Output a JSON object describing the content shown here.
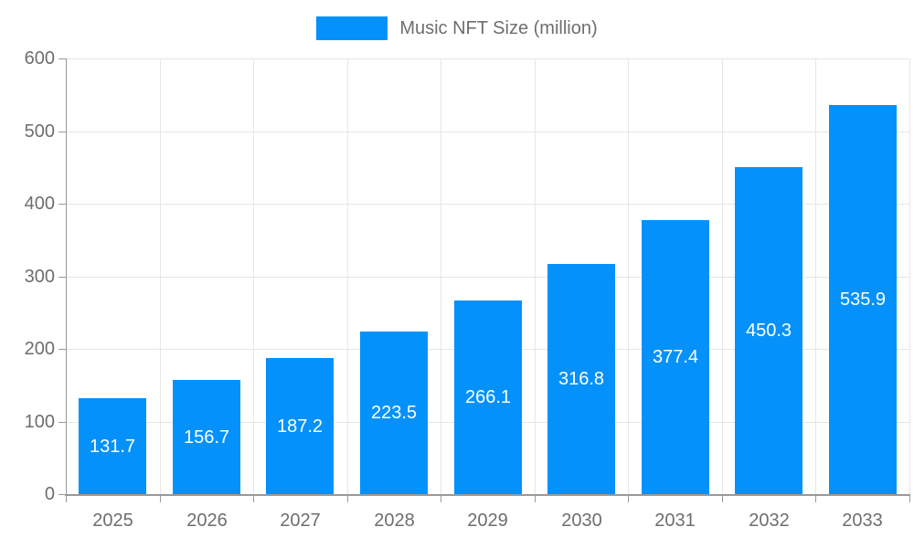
{
  "chart_data": {
    "type": "bar",
    "title": "Music NFT Size (million)",
    "legend": [
      "Music NFT Size (million)"
    ],
    "legend_position": "top-center",
    "categories": [
      "2025",
      "2026",
      "2027",
      "2028",
      "2029",
      "2030",
      "2031",
      "2032",
      "2033"
    ],
    "series": [
      {
        "name": "Music NFT Size (million)",
        "values": [
          131.7,
          156.7,
          187.2,
          223.5,
          266.1,
          316.8,
          377.4,
          450.3,
          535.9
        ]
      }
    ],
    "data_labels": [
      "131.7",
      "156.7",
      "187.2",
      "223.5",
      "266.1",
      "316.8",
      "377.4",
      "450.3",
      "535.9"
    ],
    "data_label_position": "inside-center",
    "xlabel": "",
    "ylabel": "",
    "ylim": [
      0,
      600
    ],
    "yticks": [
      0,
      100,
      200,
      300,
      400,
      500,
      600
    ],
    "grid": true,
    "colors": {
      "bar": "#0591fa",
      "grid_line": "#e6e6e6",
      "axis_line": "#999999",
      "axis_text": "#6e6e6e",
      "data_label_text": "#ffffff",
      "legend_text": "#6e6e6e",
      "background": "#ffffff"
    }
  }
}
